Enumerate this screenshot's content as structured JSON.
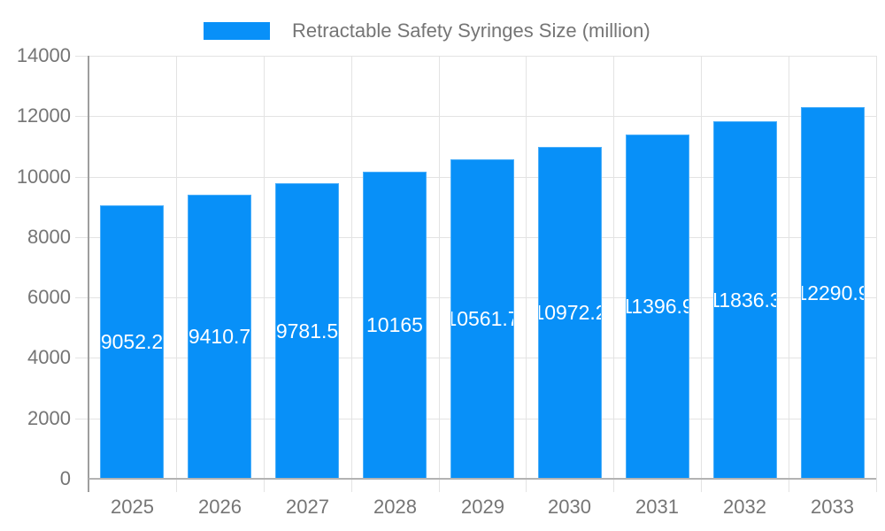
{
  "legend": {
    "label": "Retractable Safety Syringes Size (million)"
  },
  "colors": {
    "bar": "#0890f8",
    "grid": "#e3e3e3",
    "axis": "#9e9e9e",
    "baseline": "#b3b3b3",
    "label_text": "#757575",
    "value_text": "#ffffff",
    "background": "#ffffff"
  },
  "chart_data": {
    "type": "bar",
    "title": "Retractable Safety Syringes Size (million)",
    "categories": [
      "2025",
      "2026",
      "2027",
      "2028",
      "2029",
      "2030",
      "2031",
      "2032",
      "2033"
    ],
    "series": [
      {
        "name": "Retractable Safety Syringes Size (million)",
        "values": [
          9052.2,
          9410.7,
          9781.5,
          10165,
          10561.7,
          10972.2,
          11396.9,
          11836.3,
          12290.9
        ]
      }
    ],
    "value_labels": [
      "9052.2",
      "9410.7",
      "9781.5",
      "10165",
      "10561.7",
      "10972.2",
      "11396.9",
      "11836.3",
      "12290.9"
    ],
    "xlabel": "",
    "ylabel": "",
    "ylim": [
      0,
      14000
    ],
    "yticks": [
      0,
      2000,
      4000,
      6000,
      8000,
      10000,
      12000,
      14000
    ],
    "grid": true,
    "legend_position": "top",
    "value_labels_inside_bars": true
  }
}
